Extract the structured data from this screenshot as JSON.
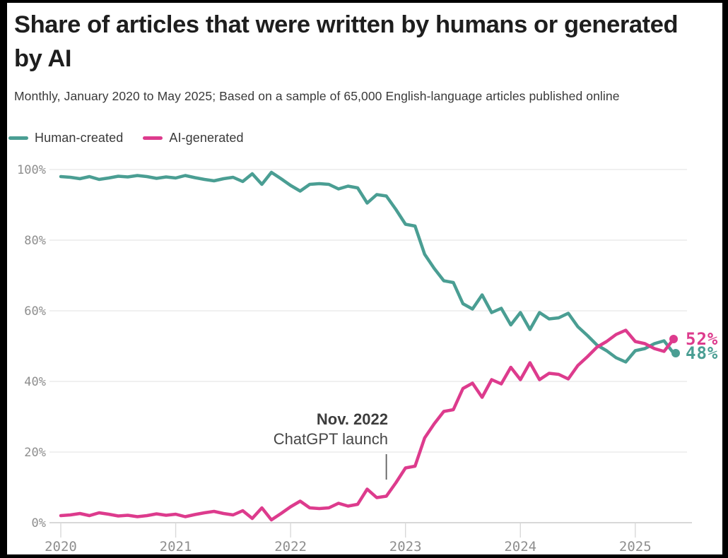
{
  "header": {
    "title": "Share of articles that were written by humans or generated by AI",
    "subtitle": "Monthly, January 2020 to May 2025; Based on a sample of 65,000 English-language articles published online"
  },
  "legend": [
    {
      "label": "Human-created",
      "color": "#4a9e93"
    },
    {
      "label": "AI-generated",
      "color": "#dd3b8d"
    }
  ],
  "chart_data": {
    "type": "line",
    "title": "Share of articles that were written by humans or generated by AI",
    "x_unit": "month",
    "x_start": "2020-01",
    "x_end": "2025-05",
    "x_tick_labels": [
      "2020",
      "2021",
      "2022",
      "2023",
      "2024",
      "2025"
    ],
    "y_tick_values": [
      0,
      20,
      40,
      60,
      80,
      100
    ],
    "y_tick_labels": [
      "0%",
      "20%",
      "40%",
      "60%",
      "80%",
      "100%"
    ],
    "ylim": [
      0,
      100
    ],
    "grid": true,
    "legend_position": "top-left",
    "series": [
      {
        "name": "Human-created",
        "color": "#4a9e93",
        "end_label": "48%",
        "values": [
          98,
          97.8,
          97.4,
          98,
          97.2,
          97.6,
          98.1,
          97.9,
          98.3,
          98,
          97.5,
          97.9,
          97.6,
          98.3,
          97.7,
          97.2,
          96.8,
          97.4,
          97.8,
          96.6,
          98.8,
          95.8,
          99.2,
          97.4,
          95.5,
          93.9,
          95.8,
          96,
          95.8,
          94.5,
          95.3,
          94.8,
          90.5,
          92.9,
          92.5,
          88.7,
          84.5,
          84,
          76,
          72,
          68.5,
          68,
          62,
          60.5,
          64.5,
          59.5,
          60.7,
          56,
          59.5,
          54.7,
          59.5,
          57.7,
          58,
          59.3,
          55.5,
          53,
          50.3,
          48.7,
          46.7,
          45.5,
          48.7,
          49.3,
          50.7,
          51.5,
          48
        ]
      },
      {
        "name": "AI-generated",
        "color": "#dd3b8d",
        "end_label": "52%",
        "values": [
          2,
          2.2,
          2.6,
          2,
          2.8,
          2.4,
          1.9,
          2.1,
          1.7,
          2,
          2.5,
          2.1,
          2.4,
          1.7,
          2.3,
          2.8,
          3.2,
          2.6,
          2.2,
          3.4,
          1.2,
          4.2,
          0.8,
          2.6,
          4.5,
          6.1,
          4.2,
          4,
          4.2,
          5.5,
          4.7,
          5.2,
          9.5,
          7.1,
          7.5,
          11.3,
          15.5,
          16,
          24,
          28,
          31.5,
          32,
          38,
          39.5,
          35.5,
          40.5,
          39.3,
          44,
          40.5,
          45.3,
          40.5,
          42.3,
          42,
          40.7,
          44.5,
          47,
          49.7,
          51.3,
          53.3,
          54.5,
          51.3,
          50.7,
          49.3,
          48.5,
          52
        ]
      }
    ],
    "annotation": {
      "line1": "Nov. 2022",
      "line2": "ChatGPT launch",
      "x_month_index": 34
    }
  }
}
